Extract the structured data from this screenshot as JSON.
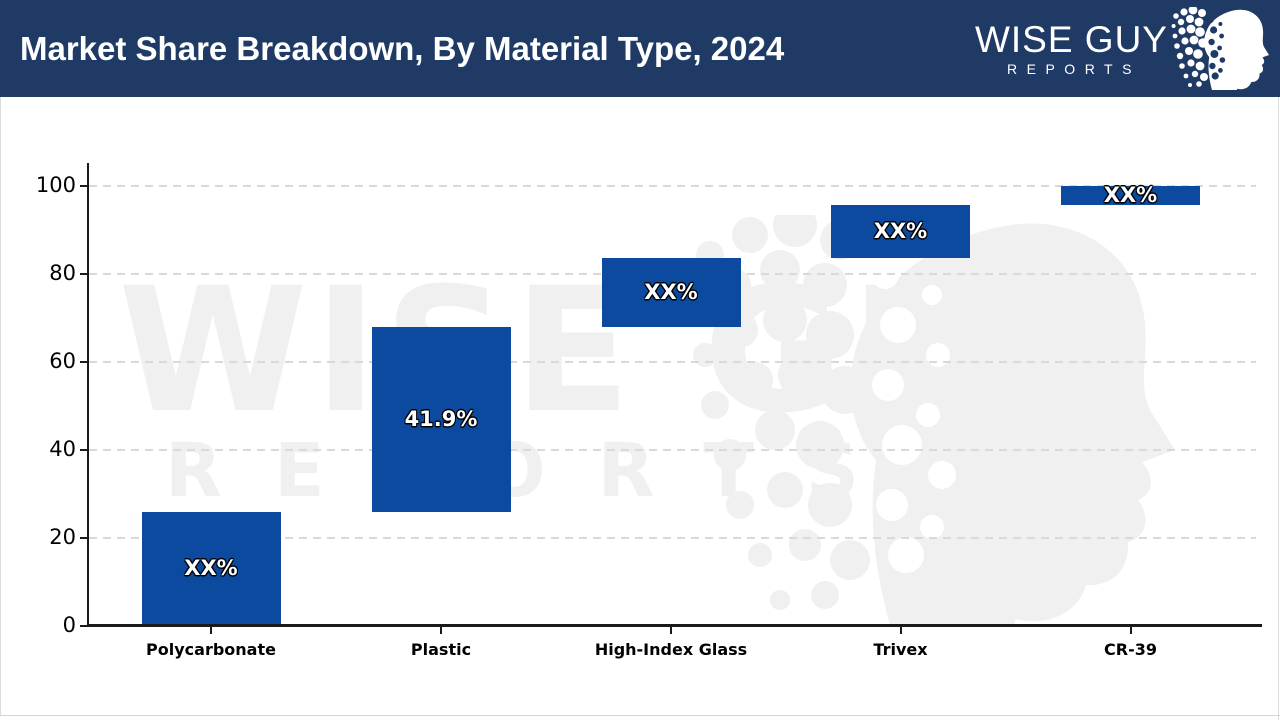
{
  "header": {
    "title": "Market Share Breakdown, By Material Type, 2024",
    "logo": {
      "line1": "WISE GUY",
      "line2": "REPORTS"
    }
  },
  "watermark": {
    "line1": "WISE GUY",
    "line2": "REPORTS"
  },
  "colors": {
    "header_bg": "#203a66",
    "bar": "#0c4aa0",
    "gridline": "#d9d9d9",
    "axis": "#1a1a1a",
    "watermark": "#f0f0f0",
    "bar_label_text": "#ffffff"
  },
  "chart_data": {
    "type": "bar",
    "subtype": "waterfall",
    "title": "Market Share Breakdown, By Material Type, 2024",
    "categories": [
      "Polycarbonate",
      "Plastic",
      "High-Index Glass",
      "Trivex",
      "CR-39"
    ],
    "bars": [
      {
        "category": "Polycarbonate",
        "start": 0,
        "end": 26,
        "value": 26,
        "label": "XX%"
      },
      {
        "category": "Plastic",
        "start": 26,
        "end": 67.9,
        "value": 41.9,
        "label": "41.9%"
      },
      {
        "category": "High-Index Glass",
        "start": 67.9,
        "end": 83.6,
        "value": 15.7,
        "label": "XX%"
      },
      {
        "category": "Trivex",
        "start": 83.6,
        "end": 95.7,
        "value": 12.1,
        "label": "XX%"
      },
      {
        "category": "CR-39",
        "start": 95.7,
        "end": 100,
        "value": 4.3,
        "label": "XX%"
      }
    ],
    "yticks": [
      0,
      20,
      40,
      60,
      80,
      100
    ],
    "ytick_labels": [
      "0",
      "20",
      "40",
      "60",
      "80",
      "100"
    ],
    "ylim": [
      0,
      105
    ],
    "xlabel": "",
    "ylabel": "",
    "grid": "horizontal-dashed",
    "legend": "none"
  }
}
